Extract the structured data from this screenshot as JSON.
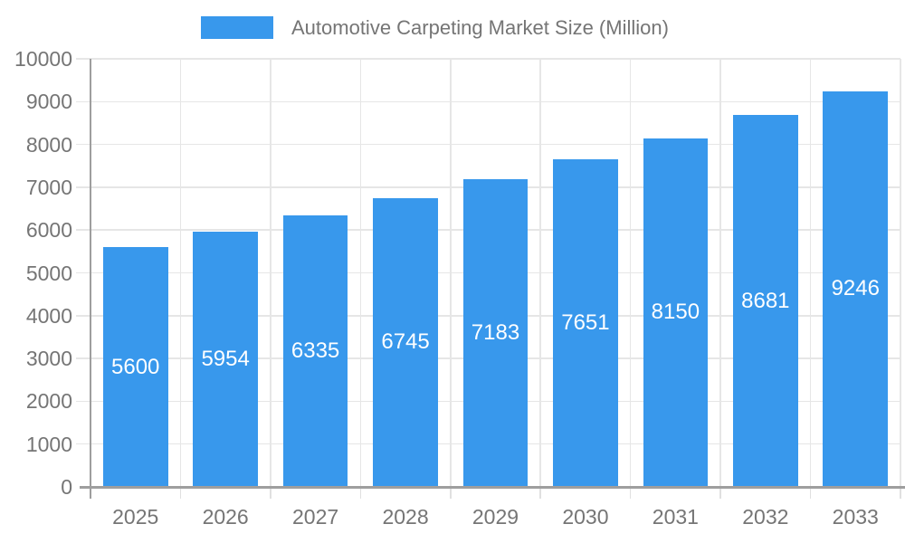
{
  "legend": {
    "label": "Automotive Carpeting Market Size (Million)",
    "swatch_color": "#3898EC"
  },
  "chart_data": {
    "type": "bar",
    "title": "Automotive Carpeting Market Size (Million)",
    "series_name": "Automotive Carpeting Market Size (Million)",
    "categories": [
      "2025",
      "2026",
      "2027",
      "2028",
      "2029",
      "2030",
      "2031",
      "2032",
      "2033"
    ],
    "values": [
      5600,
      5954,
      6335,
      6745,
      7183,
      7651,
      8150,
      8681,
      9246
    ],
    "xlabel": "",
    "ylabel": "",
    "ylim": [
      0,
      10000
    ],
    "yticks": [
      0,
      1000,
      2000,
      3000,
      4000,
      5000,
      6000,
      7000,
      8000,
      9000,
      10000
    ],
    "grid": true,
    "legend_position": "top",
    "bar_color": "#3898EC",
    "value_label_color": "#FFFFFF",
    "grid_color": "#E6E6E6",
    "axis_color": "#9E9E9E",
    "text_color": "#757575"
  }
}
